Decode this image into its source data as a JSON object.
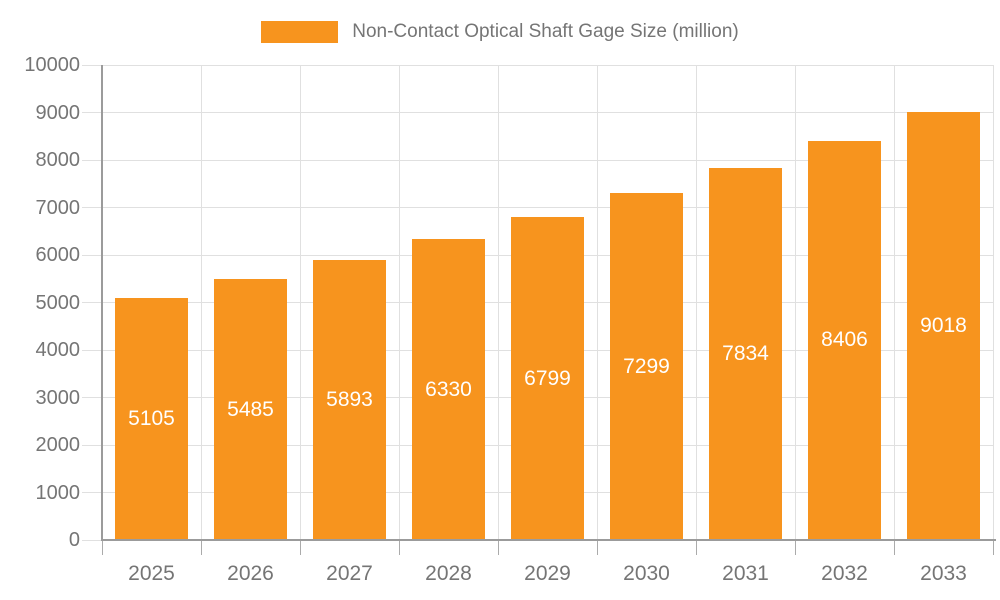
{
  "legend": {
    "label": "Non-Contact Optical Shaft Gage Size (million)"
  },
  "chart_data": {
    "type": "bar",
    "title": "Non-Contact Optical Shaft Gage Size (million)",
    "legend_position": "top",
    "categories": [
      "2025",
      "2026",
      "2027",
      "2028",
      "2029",
      "2030",
      "2031",
      "2032",
      "2033"
    ],
    "series": [
      {
        "name": "Non-Contact Optical Shaft Gage Size (million)",
        "values": [
          5105,
          5485,
          5893,
          6330,
          6799,
          7299,
          7834,
          8406,
          9018
        ]
      }
    ],
    "bar_labels": [
      "5105",
      "5485",
      "5893",
      "6330",
      "6799",
      "7299",
      "7834",
      "8406",
      "9018"
    ],
    "xlabel": "",
    "ylabel": "",
    "ylim": [
      0,
      10000
    ],
    "ytick_step": 1000,
    "yticks": [
      "0",
      "1000",
      "2000",
      "3000",
      "4000",
      "5000",
      "6000",
      "7000",
      "8000",
      "9000",
      "10000"
    ],
    "grid": true,
    "colors": {
      "bar": "#F7941E",
      "grid": "#E0E0E0",
      "axis": "#9B9B9B",
      "x_tick": "#ABABAB",
      "text": "#757575",
      "bar_label": "#FFFFFF",
      "background": "#FFFFFF"
    }
  }
}
